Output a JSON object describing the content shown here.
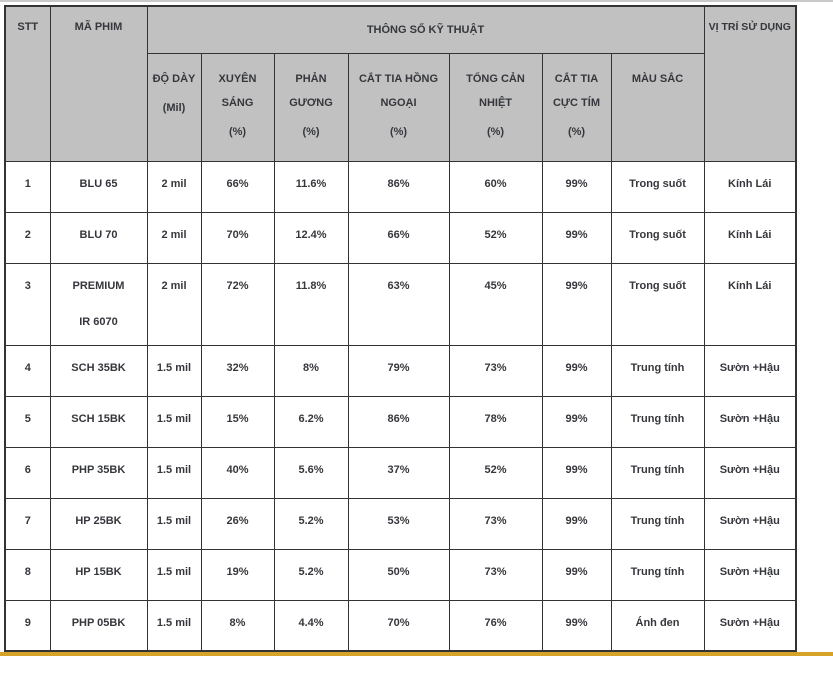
{
  "colors": {
    "header_bg": "#c1c1c1",
    "border": "#333333",
    "text": "#35373c",
    "gold_rule": "#d6a328",
    "top_hairline": "#c9c9c9"
  },
  "table": {
    "header": {
      "stt": "STT",
      "film_code": "MÃ PHIM",
      "specs_group": "THÔNG SỐ KỸ THUẬT",
      "position": "VỊ TRÍ SỬ DỤNG"
    },
    "subheader": {
      "thickness": {
        "name": "ĐỘ DÀY",
        "unit": "(Mil)"
      },
      "vlt": {
        "name": "XUYÊN SÁNG",
        "unit": "(%)"
      },
      "mirror": {
        "name": "PHẢN GƯƠNG",
        "unit": "(%)"
      },
      "ir": {
        "name": "CẮT TIA HỒNG NGOẠI",
        "unit": "(%)"
      },
      "heat": {
        "name": "TỔNG CẢN NHIỆT",
        "unit": "(%)"
      },
      "uv": {
        "name": "CẮT TIA CỰC TÍM",
        "unit": "(%)"
      },
      "color": {
        "name": "MÀU SẮC",
        "unit": ""
      }
    },
    "rows": [
      {
        "stt": "1",
        "code": "BLU 65",
        "thickness": "2 mil",
        "vlt": "66%",
        "mirror": "11.6%",
        "ir": "86%",
        "heat": "60%",
        "uv": "99%",
        "color": "Trong suốt",
        "position": "Kính Lái"
      },
      {
        "stt": "2",
        "code": "BLU 70",
        "thickness": "2 mil",
        "vlt": "70%",
        "mirror": "12.4%",
        "ir": "66%",
        "heat": "52%",
        "uv": "99%",
        "color": "Trong suốt",
        "position": "Kính Lái"
      },
      {
        "stt": "3",
        "code": [
          "PREMIUM",
          "IR 6070"
        ],
        "thickness": "2 mil",
        "vlt": "72%",
        "mirror": "11.8%",
        "ir": "63%",
        "heat": "45%",
        "uv": "99%",
        "color": "Trong suốt",
        "position": "Kính Lái"
      },
      {
        "stt": "4",
        "code": "SCH 35BK",
        "thickness": "1.5 mil",
        "vlt": "32%",
        "mirror": "8%",
        "ir": "79%",
        "heat": "73%",
        "uv": "99%",
        "color": "Trung tính",
        "position": "Sườn +Hậu"
      },
      {
        "stt": "5",
        "code": "SCH 15BK",
        "thickness": "1.5 mil",
        "vlt": "15%",
        "mirror": "6.2%",
        "ir": "86%",
        "heat": "78%",
        "uv": "99%",
        "color": "Trung tính",
        "position": "Sườn +Hậu"
      },
      {
        "stt": "6",
        "code": "PHP 35BK",
        "thickness": "1.5 mil",
        "vlt": "40%",
        "mirror": "5.6%",
        "ir": "37%",
        "heat": "52%",
        "uv": "99%",
        "color": "Trung tính",
        "position": "Sườn +Hậu"
      },
      {
        "stt": "7",
        "code": "HP 25BK",
        "thickness": "1.5 mil",
        "vlt": "26%",
        "mirror": "5.2%",
        "ir": "53%",
        "heat": "73%",
        "uv": "99%",
        "color": "Trung tính",
        "position": "Sườn +Hậu"
      },
      {
        "stt": "8",
        "code": "HP 15BK",
        "thickness": "1.5 mil",
        "vlt": "19%",
        "mirror": "5.2%",
        "ir": "50%",
        "heat": "73%",
        "uv": "99%",
        "color": "Trung tính",
        "position": "Sườn +Hậu"
      },
      {
        "stt": "9",
        "code": "PHP 05BK",
        "thickness": "1.5 mil",
        "vlt": "8%",
        "mirror": "4.4%",
        "ir": "70%",
        "heat": "76%",
        "uv": "99%",
        "color": "Ánh đen",
        "position": "Sườn +Hậu"
      }
    ]
  }
}
